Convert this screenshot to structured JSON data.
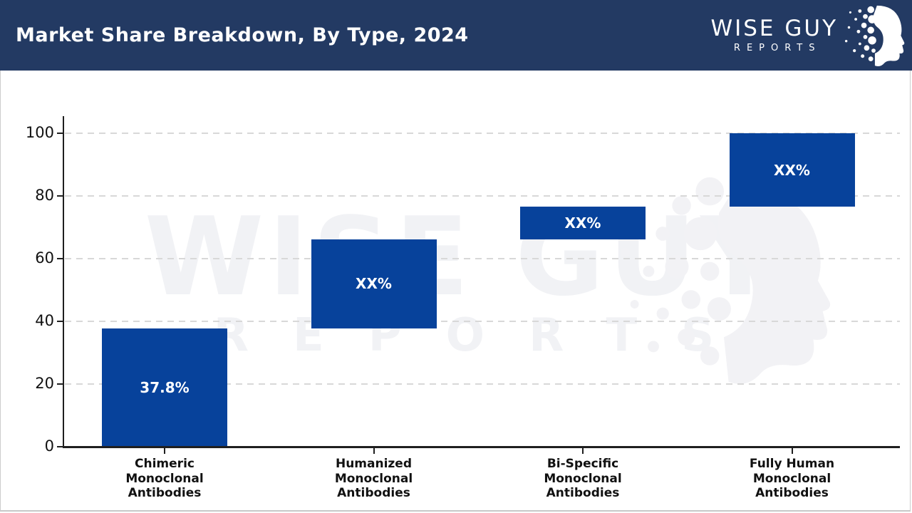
{
  "header": {
    "title": "Market Share Breakdown, By Type, 2024",
    "bg_color": "#233a63",
    "logo": {
      "line1": "WISE GUY",
      "line2": "REPORTS"
    }
  },
  "watermark": {
    "line1": "WISE GUY",
    "line2": "REPORTS"
  },
  "chart_data": {
    "type": "bar",
    "subtype": "floating-cumulative-bars",
    "title": "Market Share Breakdown, By Type, 2024",
    "xlabel": "",
    "ylabel": "",
    "ylim": [
      0,
      100
    ],
    "yticks": [
      0,
      20,
      40,
      60,
      80,
      100
    ],
    "grid": "horizontal-dashed",
    "legend": "none",
    "bar_color": "#07429b",
    "bar_label_color": "#ffffff",
    "categories": [
      "Chimeric\nMonoclonal\nAntibodies",
      "Humanized\nMonoclonal\nAntibodies",
      "Bi-Specific\nMonoclonal\nAntibodies",
      "Fully Human\nMonoclonal\nAntibodies"
    ],
    "bars": [
      {
        "category": "Chimeric Monoclonal Antibodies",
        "start": 0,
        "end": 37.8,
        "value": 37.8,
        "label": "37.8%"
      },
      {
        "category": "Humanized Monoclonal Antibodies",
        "start": 37.8,
        "end": 66.2,
        "value": 28.4,
        "label": "XX%"
      },
      {
        "category": "Bi-Specific Monoclonal Antibodies",
        "start": 66.2,
        "end": 76.5,
        "value": 10.3,
        "label": "XX%"
      },
      {
        "category": "Fully Human Monoclonal Antibodies",
        "start": 76.5,
        "end": 100,
        "value": 23.5,
        "label": "XX%"
      }
    ]
  }
}
